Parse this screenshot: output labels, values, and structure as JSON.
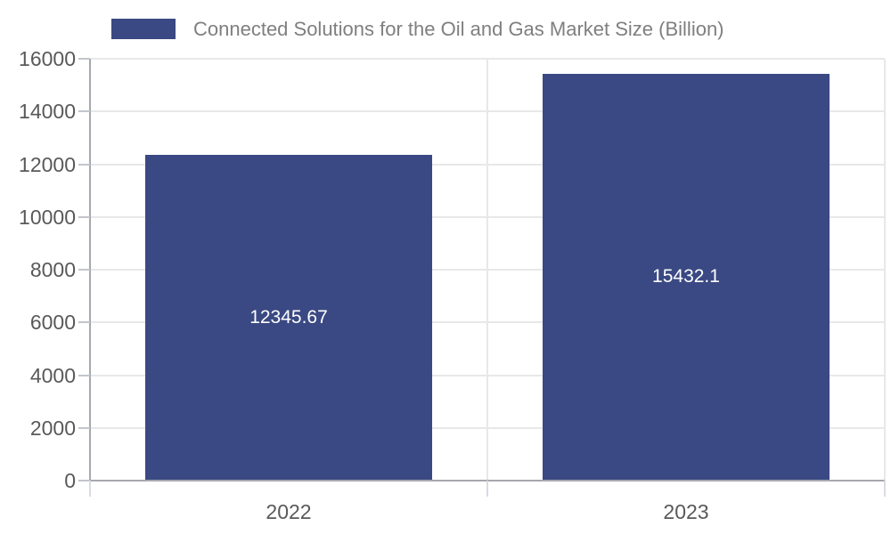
{
  "chart_data": {
    "type": "bar",
    "title": "Connected Solutions for the Oil and Gas Market Size (Billion)",
    "legend_position": "top",
    "categories": [
      "2022",
      "2023"
    ],
    "values": [
      12345.67,
      15432.1
    ],
    "value_labels": [
      "12345.67",
      "15432.1"
    ],
    "xlabel": "",
    "ylabel": "",
    "ylim": [
      0,
      16000
    ],
    "yticks": [
      0,
      2000,
      4000,
      6000,
      8000,
      10000,
      12000,
      14000,
      16000
    ],
    "ytick_labels": [
      "0",
      "2000",
      "4000",
      "6000",
      "8000",
      "10000",
      "12000",
      "14000",
      "16000"
    ],
    "grid": "on",
    "bar_width_fraction": 0.72,
    "colors": {
      "bar": "#3a4983",
      "grid": "#e8e8ea",
      "axis": "#a7a7af",
      "tick_text": "#595959",
      "title_text": "#7f7f7f",
      "value_text": "#ffffff"
    }
  }
}
